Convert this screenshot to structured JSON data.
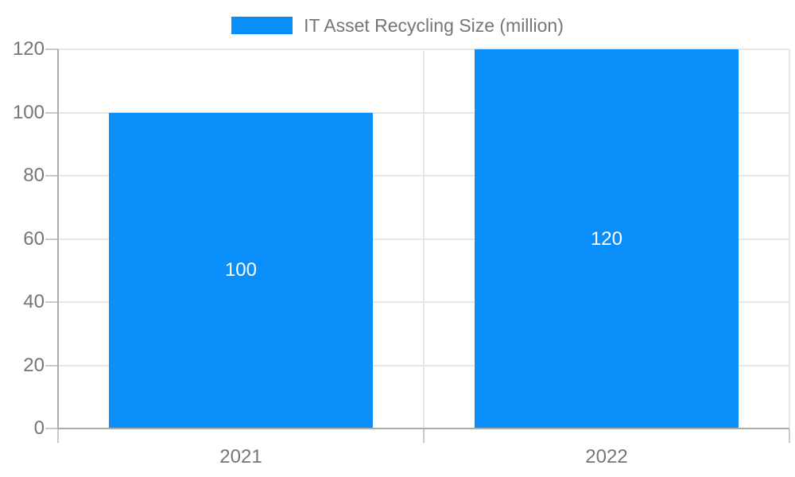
{
  "chart_data": {
    "type": "bar",
    "title": "",
    "categories": [
      "2021",
      "2022"
    ],
    "series": [
      {
        "name": "IT Asset Recycling Size (million)",
        "values": [
          100,
          120
        ],
        "color": "#0A8EF9"
      }
    ],
    "data_labels": [
      "100",
      "120"
    ],
    "xlabel": "",
    "ylabel": "",
    "ylim": [
      0,
      120
    ],
    "yticks": [
      0,
      20,
      40,
      60,
      80,
      100,
      120
    ],
    "grid": true,
    "legend_position": "top-center",
    "bar_width_ratio": 0.72
  },
  "colors": {
    "bar": "#0A8EF9",
    "axis_line": "#ABABAB",
    "grid_line": "#E6E6E6",
    "tick": "#C9C9C9",
    "text": "#757575",
    "value_label": "#FFFFFF",
    "background": "#FFFFFF"
  }
}
